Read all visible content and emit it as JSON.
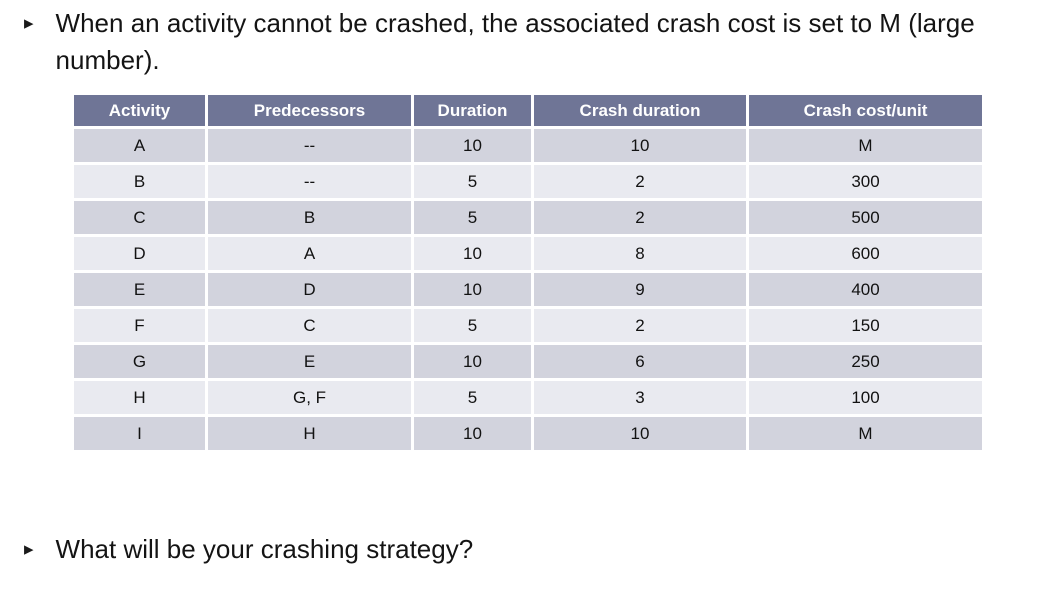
{
  "slide": {
    "bullets": [
      {
        "glyph": "▸",
        "text": "When an activity cannot be crashed, the associated crash cost is set to M (large number)."
      },
      {
        "glyph": "▸",
        "text": "What will be your crashing strategy?"
      }
    ]
  },
  "table": {
    "headers": [
      "Activity",
      "Predecessors",
      "Duration",
      "Crash duration",
      "Crash cost/unit"
    ],
    "rows": [
      [
        "A",
        "--",
        "10",
        "10",
        "M"
      ],
      [
        "B",
        "--",
        "5",
        "2",
        "300"
      ],
      [
        "C",
        "B",
        "5",
        "2",
        "500"
      ],
      [
        "D",
        "A",
        "10",
        "8",
        "600"
      ],
      [
        "E",
        "D",
        "10",
        "9",
        "400"
      ],
      [
        "F",
        "C",
        "5",
        "2",
        "150"
      ],
      [
        "G",
        "E",
        "10",
        "6",
        "250"
      ],
      [
        "H",
        "G, F",
        "5",
        "3",
        "100"
      ],
      [
        "I",
        "H",
        "10",
        "10",
        "M"
      ]
    ],
    "colors": {
      "header_bg": "#6F7596",
      "header_text": "#FFFFFF",
      "row_odd_bg": "#D2D3DD",
      "row_even_bg": "#E9EAF0"
    }
  }
}
